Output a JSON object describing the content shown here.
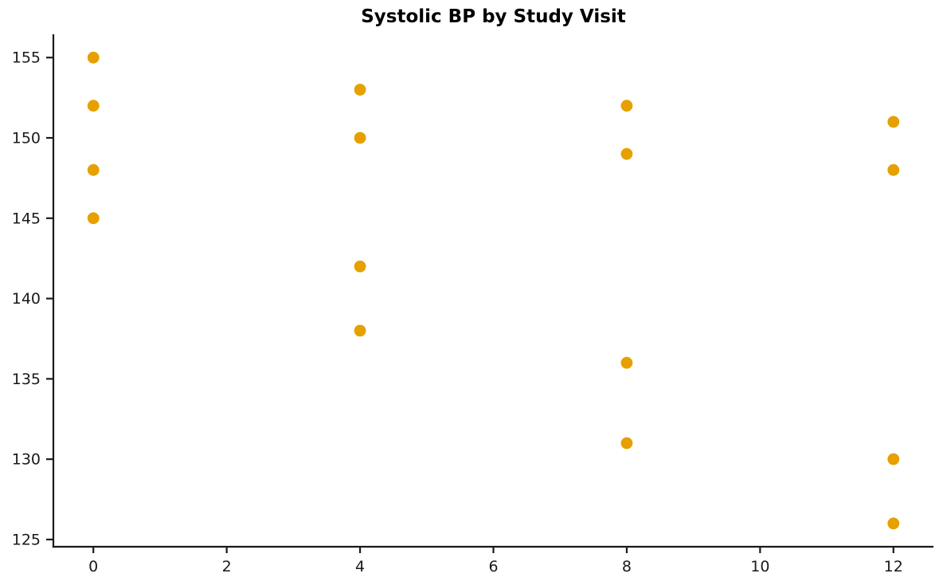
{
  "chart_data": {
    "type": "scatter",
    "title": "Systolic BP by Study Visit",
    "xlabel": "",
    "ylabel": "",
    "series": [
      {
        "name": "Systolic BP",
        "color": "#E6A000",
        "x": [
          0,
          0,
          0,
          0,
          4,
          4,
          4,
          4,
          8,
          8,
          8,
          8,
          12,
          12,
          12,
          12
        ],
        "y": [
          155,
          152,
          148,
          145,
          153,
          150,
          142,
          138,
          152,
          149,
          136,
          131,
          151,
          148,
          130,
          126
        ]
      }
    ],
    "x_ticks": [
      0,
      2,
      4,
      6,
      8,
      10,
      12
    ],
    "y_ticks": [
      125,
      130,
      135,
      140,
      145,
      150,
      155
    ],
    "xlim": [
      -0.6,
      12.6
    ],
    "ylim": [
      124.55,
      156.45
    ],
    "grid": false,
    "legend": "none",
    "axis_color": "#1a1a1a",
    "tick_label_color": "#1a1a1a",
    "title_color": "#000000",
    "background_color": "#ffffff"
  }
}
